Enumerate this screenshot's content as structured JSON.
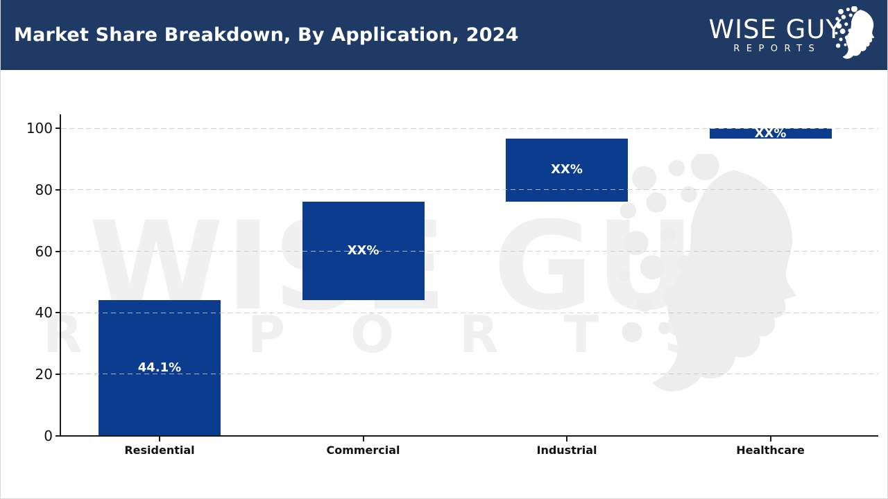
{
  "header": {
    "title": "Market Share Breakdown, By Application, 2024",
    "logo": {
      "line1": "WISE GUY",
      "line2": "REPORTS"
    }
  },
  "watermark": {
    "line1": "WISE GUY",
    "line2": "REPORTS"
  },
  "chart_data": {
    "type": "bar",
    "subtype": "waterfall",
    "title": "Market Share Breakdown, By Application, 2024",
    "categories": [
      "Residential",
      "Commercial",
      "Industrial",
      "Healthcare"
    ],
    "segments": [
      {
        "category": "Residential",
        "start": 0,
        "end": 44.1,
        "label": "44.1%"
      },
      {
        "category": "Commercial",
        "start": 44.1,
        "end": 76.2,
        "label": "XX%"
      },
      {
        "category": "Industrial",
        "start": 76.2,
        "end": 96.7,
        "label": "XX%"
      },
      {
        "category": "Healthcare",
        "start": 96.7,
        "end": 100,
        "label": "XX%"
      }
    ],
    "xlabel": "",
    "ylabel": "",
    "yticks": [
      0,
      20,
      40,
      60,
      80,
      100
    ],
    "ylim": [
      0,
      105
    ],
    "grid": "horizontal-dashed",
    "legend": "none",
    "bar_color": "#0c3c8e",
    "label_color_inside": "#ffffff"
  },
  "colors": {
    "header_bg": "#1f3a64",
    "bar": "#0c3c8e",
    "watermark": "#f0f0f0",
    "axis": "#1a1a1a"
  }
}
